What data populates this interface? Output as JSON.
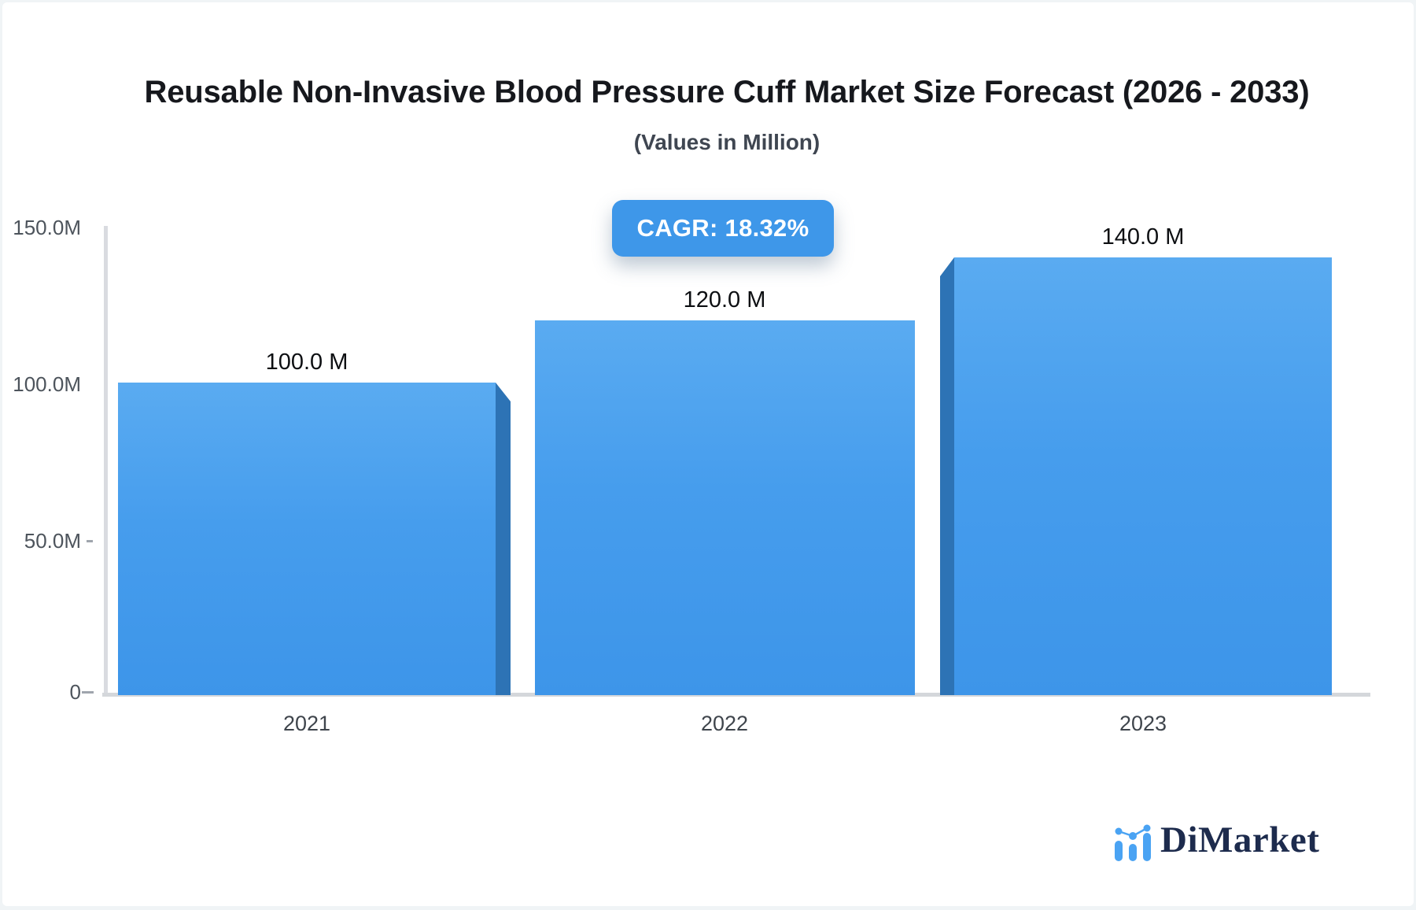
{
  "header": {
    "title": "Reusable Non-Invasive Blood Pressure Cuff Market Size Forecast (2026 - 2033)",
    "subtitle": "(Values in Million)"
  },
  "cagr_badge": {
    "label": "CAGR: 18.32%",
    "background": "#3e97e9",
    "text_color": "#ffffff"
  },
  "chart_data": {
    "type": "bar",
    "title": "Reusable Non-Invasive Blood Pressure Cuff Market Size Forecast (2026 - 2033)",
    "subtitle": "(Values in Million)",
    "unit": "Million",
    "cagr_percent": 18.32,
    "categories": [
      "2021",
      "2022",
      "2023"
    ],
    "values": [
      100.0,
      120.0,
      140.0
    ],
    "value_labels": [
      "100.0 M",
      "120.0 M",
      "140.0 M"
    ],
    "ylim": [
      0,
      150
    ],
    "y_ticks": [
      {
        "value": 150,
        "label": "150.0M"
      },
      {
        "value": 100,
        "label": "100.0M"
      },
      {
        "value": 50,
        "label": "50.0M"
      },
      {
        "value": 0,
        "label": "0"
      }
    ],
    "grid": false,
    "legend": false,
    "bar_color_top": "#5aabf1",
    "bar_color_bottom": "#3d95e9",
    "bar_bevel_color": "#2d73b5",
    "axis_color": "#d4d7db"
  },
  "branding": {
    "logo_text": "DiMarket",
    "logo_icon": "mini-bar-chart-icon",
    "logo_text_color": "#1d2b4d",
    "logo_icon_color": "#4aa3f3"
  }
}
